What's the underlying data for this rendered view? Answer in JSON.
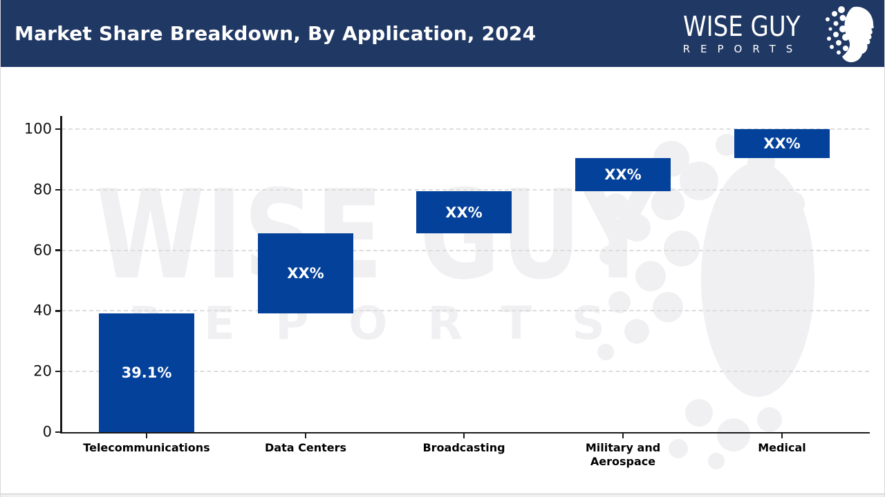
{
  "brand": {
    "name": "WISE GUY",
    "subtext": "REPORTS"
  },
  "watermark": {
    "line1": "WISE GUY",
    "line2": "REPORTS"
  },
  "chart_data": {
    "type": "bar",
    "subtype": "waterfall (floating market-share segments)",
    "title": "Market Share Breakdown, By Application, 2024",
    "categories": [
      "Telecommunications",
      "Data Centers",
      "Broadcasting",
      "Military and\nAerospace",
      "Medical"
    ],
    "series": [
      {
        "name": "Market share, 2024",
        "unit": "%",
        "segments": [
          {
            "category": "Telecommunications",
            "start": 0,
            "end": 39.1,
            "span": 39.1,
            "label": "39.1%"
          },
          {
            "category": "Data Centers",
            "start": 39.1,
            "end": 65.5,
            "span": 26.4,
            "label": "XX%"
          },
          {
            "category": "Broadcasting",
            "start": 65.5,
            "end": 79.5,
            "span": 14.0,
            "label": "XX%"
          },
          {
            "category": "Military and Aerospace",
            "start": 79.5,
            "end": 90.5,
            "span": 11.0,
            "label": "XX%"
          },
          {
            "category": "Medical",
            "start": 90.5,
            "end": 100,
            "span": 9.5,
            "label": "XX%"
          }
        ]
      }
    ],
    "xlabel": "",
    "ylabel": "",
    "yticks": [
      0,
      20,
      40,
      60,
      80,
      100
    ],
    "ylim": [
      0,
      104
    ],
    "grid": {
      "axis": "y",
      "style": "dashed",
      "color": "#dcdcdc"
    },
    "legend": "none",
    "bar_color": "#04419a",
    "bar_label_color": "#ffffff",
    "header_bg": "#203864",
    "watermark_color": "#f0f0f2"
  }
}
